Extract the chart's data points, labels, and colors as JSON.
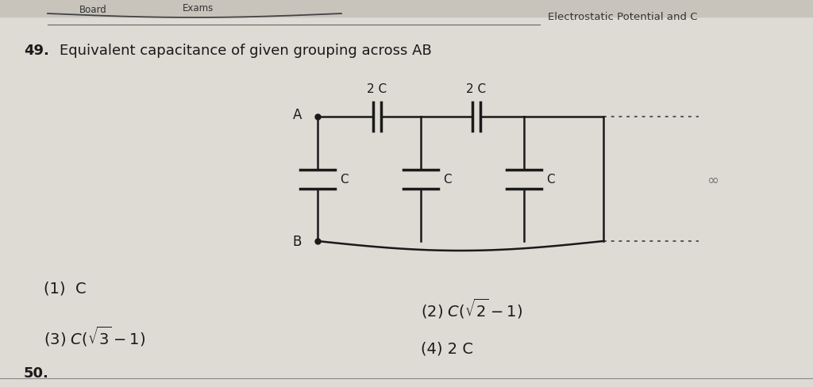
{
  "bg_color": "#c8c4bc",
  "paper_color": "#dedad4",
  "line_color": "#1a1a1a",
  "gray_color": "#666666",
  "dotted_color": "#555555",
  "title_number": "49.",
  "title_text": "Equivalent capacitance of given grouping across AB",
  "header_text": "Electrostatic Potential and C",
  "header_top": "Board                    Exams",
  "opt1": "(1)  C",
  "opt2_pre": "(2)  ",
  "opt2_math": "C(\\sqrt{2}-1)",
  "opt3_pre": "(3)  ",
  "opt3_math": "C(\\sqrt{3}-1)",
  "opt4": "(4) 2 C",
  "bottom_num": "50.",
  "A_label": "A",
  "B_label": "B",
  "cap_label_2C": "2 C",
  "cap_label_C": "C",
  "inf_symbol": "\\infty"
}
